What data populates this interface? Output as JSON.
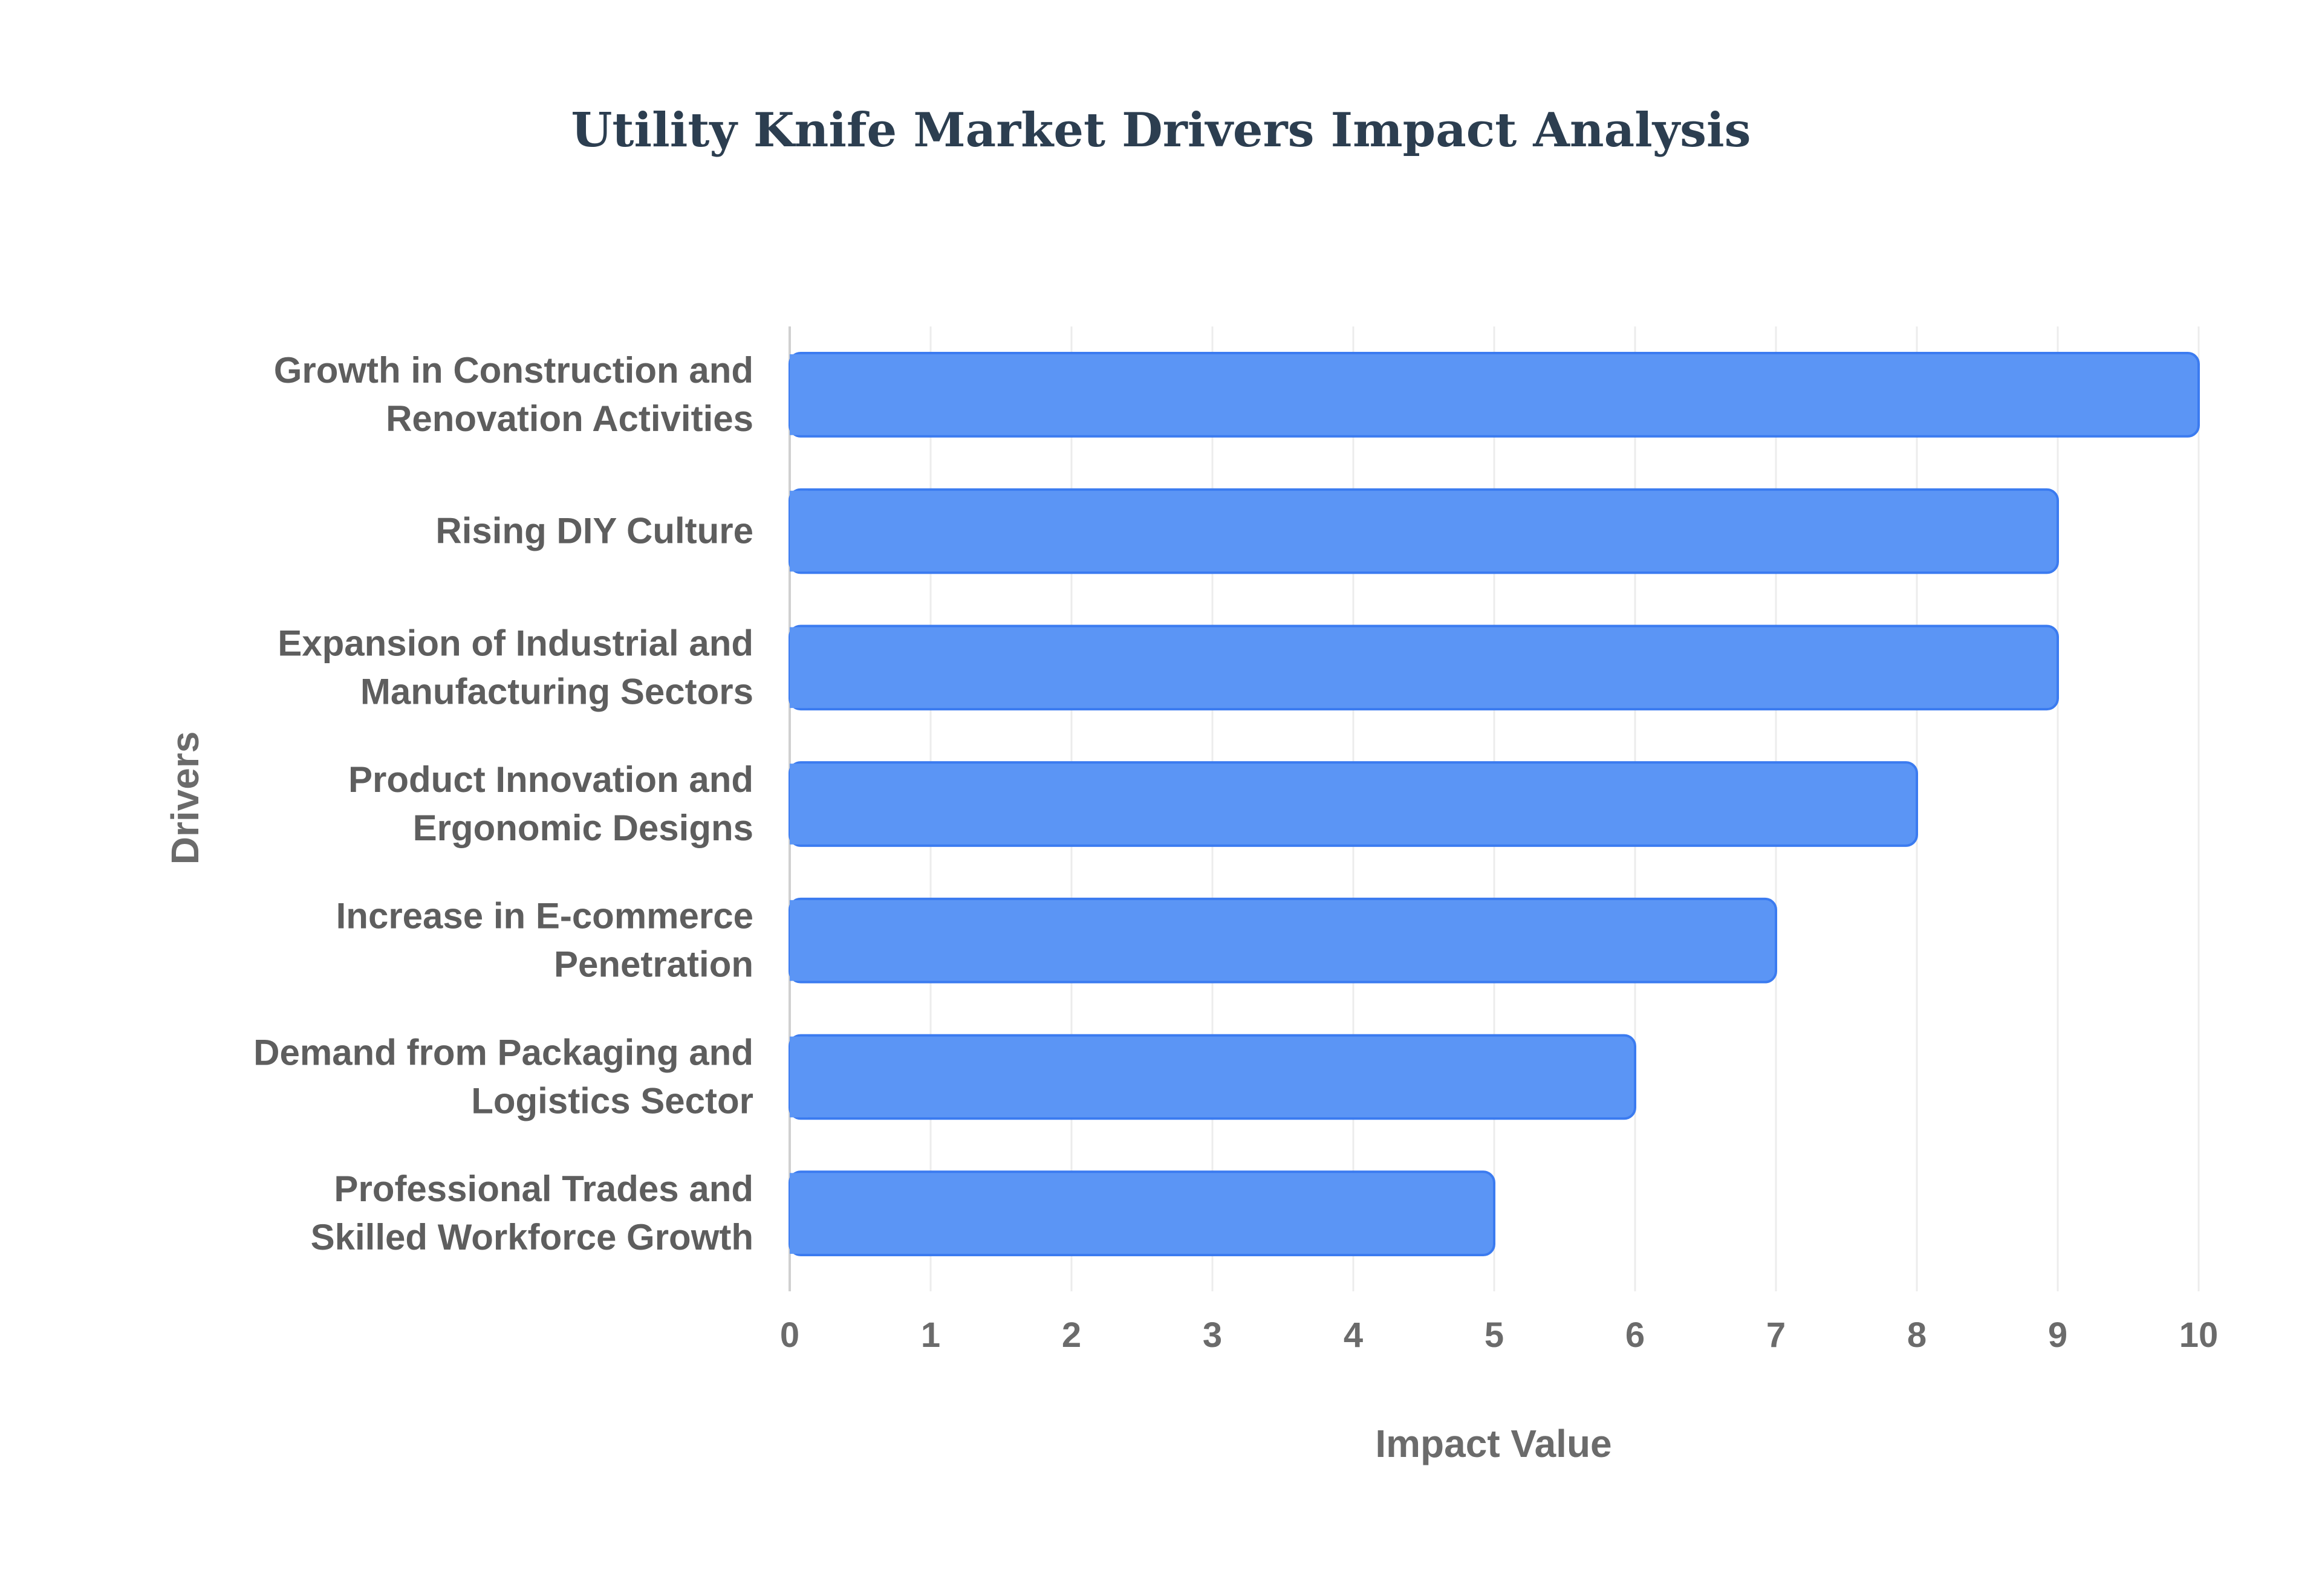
{
  "chart_data": {
    "type": "bar",
    "orientation": "horizontal",
    "title": "Utility Knife Market Drivers Impact Analysis",
    "xlabel": "Impact Value",
    "ylabel": "Drivers",
    "xlim": [
      0,
      10
    ],
    "x_ticks": [
      0,
      1,
      2,
      3,
      4,
      5,
      6,
      7,
      8,
      9,
      10
    ],
    "grid": true,
    "bar_color": "#5b95f5",
    "bar_border_color": "#3b7bf0",
    "categories": [
      [
        "Growth in Construction and",
        "Renovation Activities"
      ],
      [
        "Rising DIY Culture"
      ],
      [
        "Expansion of Industrial and",
        "Manufacturing Sectors"
      ],
      [
        "Product Innovation and",
        "Ergonomic Designs"
      ],
      [
        "Increase in E-commerce",
        "Penetration"
      ],
      [
        "Demand from Packaging and",
        "Logistics Sector"
      ],
      [
        "Professional Trades and",
        "Skilled Workforce Growth"
      ]
    ],
    "values": [
      10,
      9,
      9,
      8,
      7,
      6,
      5
    ]
  }
}
